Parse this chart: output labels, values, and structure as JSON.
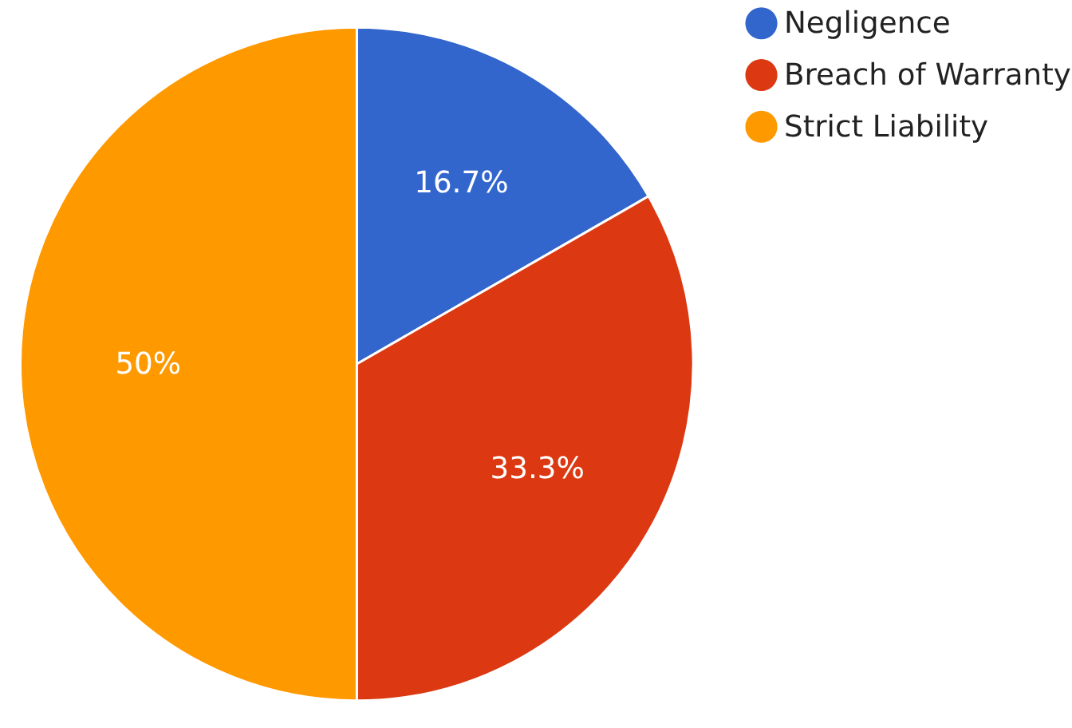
{
  "chart_data": {
    "type": "pie",
    "categories": [
      "Negligence",
      "Breach of Warranty",
      "Strict Liability"
    ],
    "values": [
      16.7,
      33.3,
      50
    ],
    "colors": [
      "#3366cc",
      "#dc3912",
      "#ff9900"
    ],
    "value_labels": [
      "16.7%",
      "33.3%",
      "50%"
    ],
    "legend": "top right"
  }
}
